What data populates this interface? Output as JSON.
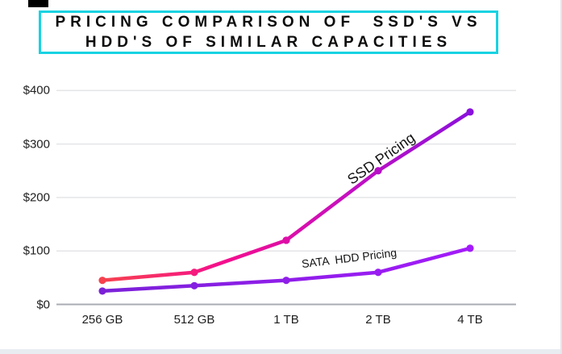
{
  "page": {
    "background": "#ffffff",
    "accent_border_color": "#17d3e2",
    "corner_accent_color": "#000000",
    "bottom_strip_color": "#e9edf2"
  },
  "title": {
    "line1": "PRICING COMPARISON OF  SSD'S VS",
    "line2": "HDD'S OF SIMILAR CAPACITIES"
  },
  "chart_data": {
    "type": "line",
    "title": "PRICING COMPARISON OF SSD'S VS HDD'S OF SIMILAR CAPACITIES",
    "categories": [
      "256 GB",
      "512 GB",
      "1 TB",
      "2 TB",
      "4 TB"
    ],
    "series": [
      {
        "name": "SSD Pricing",
        "values": [
          45,
          60,
          120,
          250,
          360
        ],
        "gradient": [
          "#f6424e",
          "#f50e8e",
          "#c60fc0",
          "#8a10dc"
        ]
      },
      {
        "name": "SATA  HDD Pricing",
        "values": [
          25,
          35,
          45,
          60,
          105
        ],
        "gradient": [
          "#7b21d8",
          "#a31bfa"
        ]
      }
    ],
    "xlabel": "",
    "ylabel": "",
    "ylim": [
      0,
      400
    ],
    "y_ticks": [
      {
        "value": 0,
        "label": "$0"
      },
      {
        "value": 100,
        "label": "$100"
      },
      {
        "value": 200,
        "label": "$200"
      },
      {
        "value": 300,
        "label": "$300"
      },
      {
        "value": 400,
        "label": "$400"
      }
    ],
    "grid": true,
    "grid_color": "#e4e5e7",
    "axis_color": "#a9adb3",
    "legend_position": "inline-line-labels"
  }
}
